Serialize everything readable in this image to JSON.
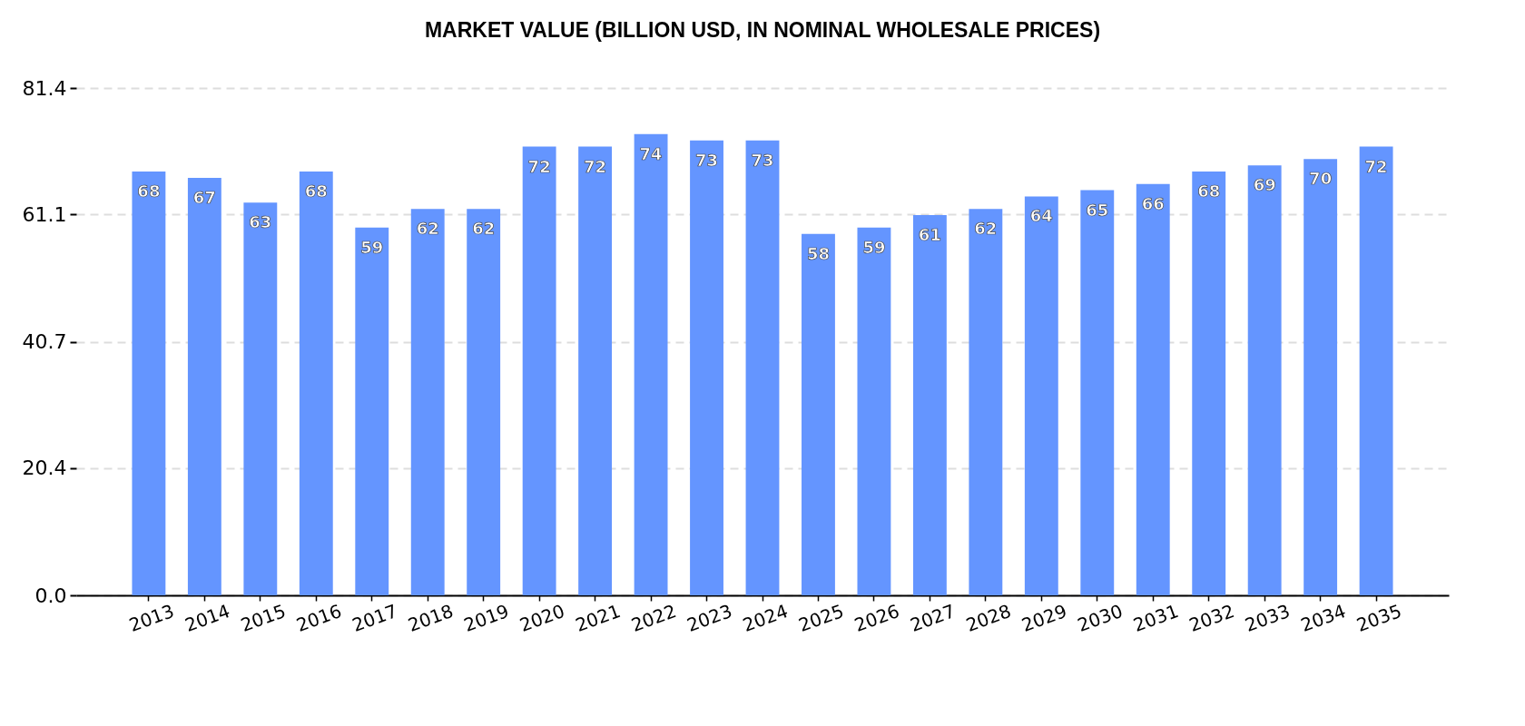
{
  "chart_data": {
    "type": "bar",
    "title": "MARKET VALUE (BILLION USD, IN NOMINAL WHOLESALE PRICES)",
    "categories": [
      "2013",
      "2014",
      "2015",
      "2016",
      "2017",
      "2018",
      "2019",
      "2020",
      "2021",
      "2022",
      "2023",
      "2024",
      "2025",
      "2026",
      "2027",
      "2028",
      "2029",
      "2030",
      "2031",
      "2032",
      "2033",
      "2034",
      "2035"
    ],
    "values": [
      68,
      67,
      63,
      68,
      59,
      62,
      62,
      72,
      72,
      74,
      73,
      73,
      58,
      59,
      61,
      62,
      64,
      65,
      66,
      68,
      69,
      70,
      72
    ],
    "color": "#6495ff",
    "ylim": [
      0,
      81.4
    ],
    "yticks": [
      {
        "value": 0,
        "label": "0.0"
      },
      20.4,
      40.7,
      61.1,
      81.4
    ],
    "grid": "y",
    "data_labels": true
  }
}
